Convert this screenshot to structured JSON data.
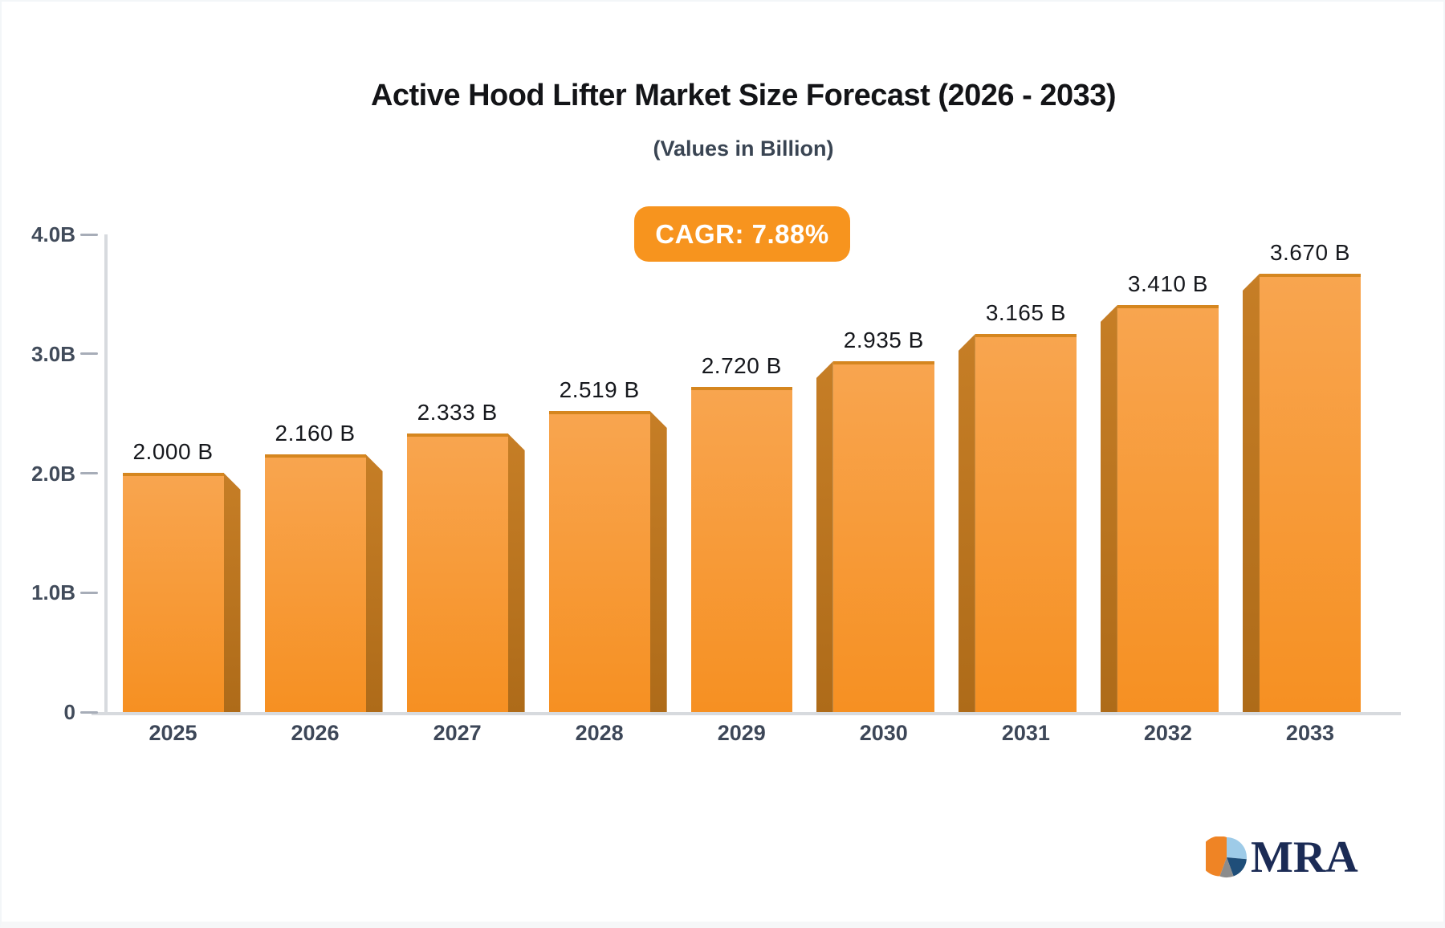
{
  "header": {
    "title": "Active Hood Lifter Market Size Forecast (2026 - 2033)",
    "subtitle": "(Values in Billion)"
  },
  "badge": {
    "label": "CAGR: 7.88%",
    "background_color": "#F7941E",
    "text_color": "#ffffff"
  },
  "chart_data": {
    "type": "bar",
    "title": "Active Hood Lifter Market Size Forecast (2026 - 2033)",
    "subtitle": "(Values in Billion)",
    "annotation": "CAGR: 7.88%",
    "categories": [
      "2025",
      "2026",
      "2027",
      "2028",
      "2029",
      "2030",
      "2031",
      "2032",
      "2033"
    ],
    "values": [
      2.0,
      2.16,
      2.333,
      2.519,
      2.72,
      2.935,
      3.165,
      3.41,
      3.67
    ],
    "value_labels": [
      "2.000 B",
      "2.160 B",
      "2.333 B",
      "2.519 B",
      "2.720 B",
      "2.935 B",
      "3.165 B",
      "3.410 B",
      "3.670 B"
    ],
    "unit": "Billion",
    "xlabel": "",
    "ylabel": "",
    "ylim": [
      0,
      4
    ],
    "yticks": [
      {
        "value": 4.0,
        "label": "4.0B"
      },
      {
        "value": 3.0,
        "label": "3.0B"
      },
      {
        "value": 2.0,
        "label": "2.0B"
      },
      {
        "value": 1.0,
        "label": "1.0B"
      },
      {
        "value": 0.0,
        "label": "0"
      }
    ],
    "grid": false,
    "legend": false,
    "style": {
      "bar_face_top": "#F8A54F",
      "bar_face_bottom": "#F69022",
      "bar_side_top": "#C67E26",
      "bar_side_bottom": "#AE6B19",
      "bar_top_edge": "#D5861F",
      "axis_line": "#D7DADE",
      "tick_label_color": "#414B5A",
      "effect": "3d-center-perspective"
    }
  },
  "footer": {
    "logo": {
      "text": "MRA",
      "text_color": "#1b2b55",
      "pie_colors": {
        "orange": "#EF8425",
        "light_blue": "#9ECBE8",
        "navy": "#1F4E79",
        "gray": "#8C8C8C"
      }
    }
  }
}
